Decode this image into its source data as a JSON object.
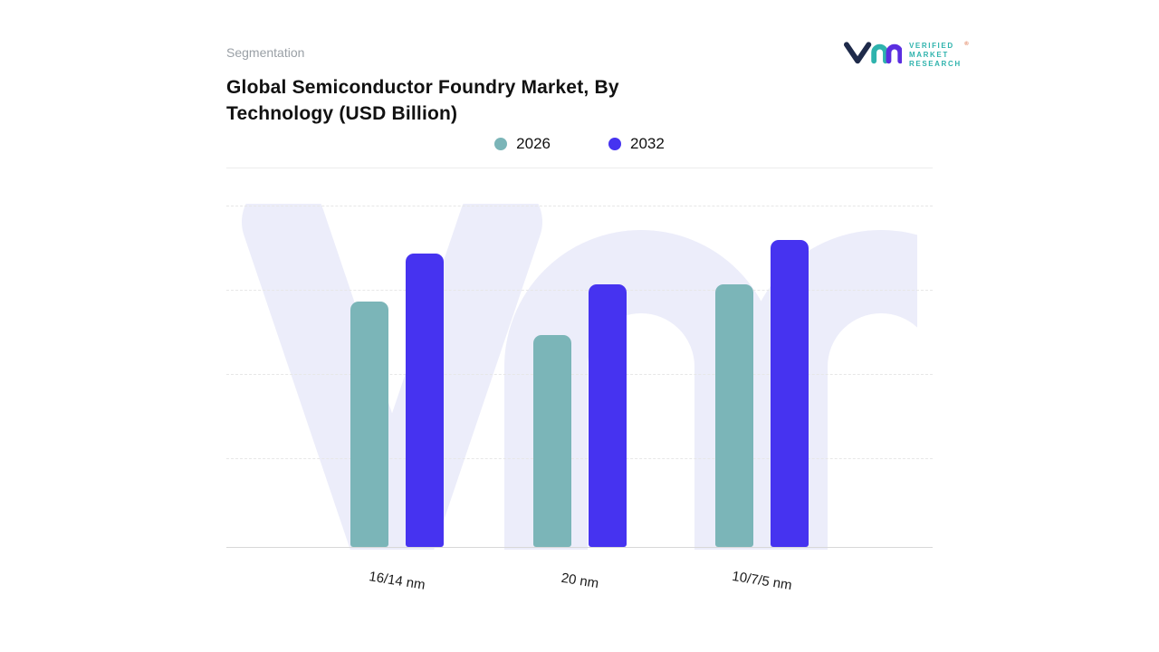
{
  "page": {
    "eyebrow": "Segmentation"
  },
  "title": {
    "line1": "Global Semiconductor Foundry Market, By",
    "line2": "Technology (USD Billion)"
  },
  "logo": {
    "line1": "VERIFIED",
    "line2": "MARKET",
    "line3": "RESEARCH",
    "registered": "®"
  },
  "chart_data": {
    "type": "bar",
    "title": "Global Semiconductor Foundry Market, By Technology (USD Billion)",
    "unit": "USD Billion",
    "categories": [
      "16/14 nm",
      "20 nm",
      "10/7/5 nm"
    ],
    "series": [
      {
        "name": "2026",
        "color": "#7bb5b8",
        "values": [
          72,
          62,
          77
        ]
      },
      {
        "name": "2032",
        "color": "#4633f0",
        "values": [
          86,
          77,
          90
        ]
      }
    ],
    "ylim": [
      0,
      100
    ],
    "grid": "horizontal-dashed",
    "legend_position": "top-center",
    "colors": {
      "background": "#ffffff",
      "watermark": "#ecedfa",
      "gridline": "#e7e7e7",
      "baseline": "#d8d8d8"
    }
  }
}
